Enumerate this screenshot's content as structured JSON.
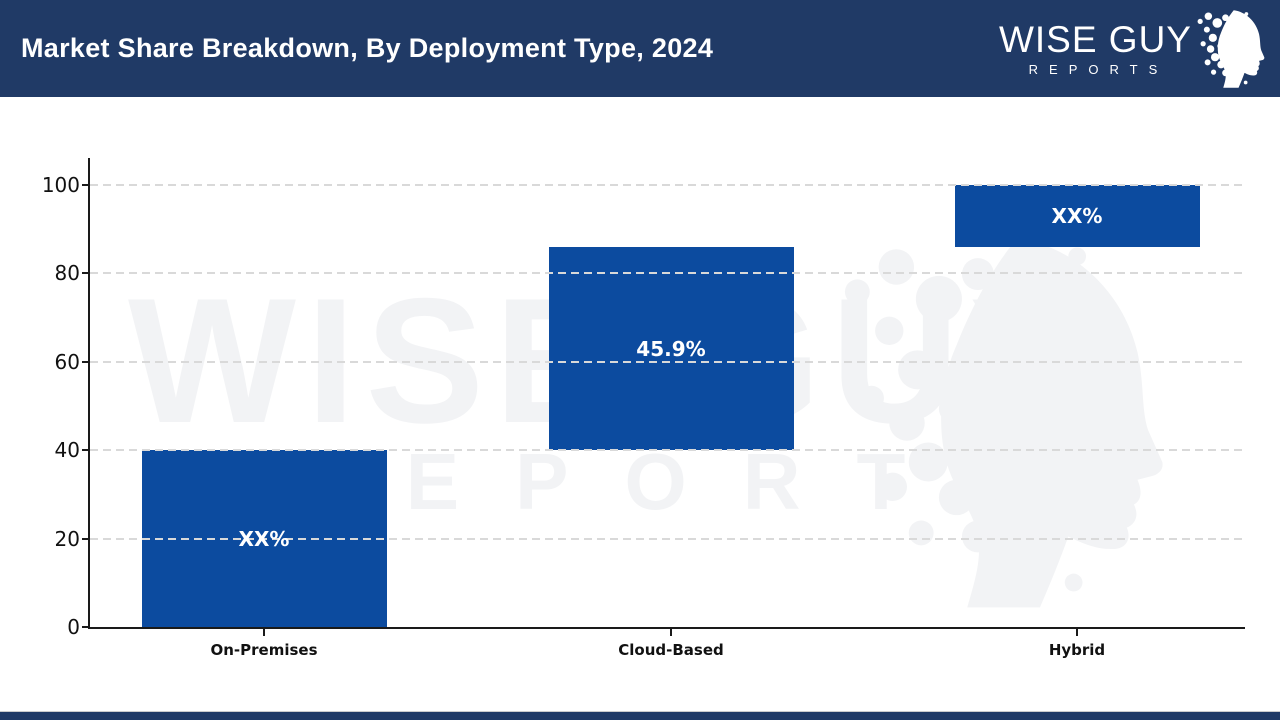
{
  "header": {
    "title": "Market Share Breakdown, By Deployment Type, 2024",
    "bg_color": "#203a66",
    "logo": {
      "line1": "WISE GUY",
      "line2": "REPORTS"
    }
  },
  "watermark": {
    "line1": "WISE GUY",
    "line2": "REPORTS"
  },
  "footer": {
    "bg_color": "#203a66"
  },
  "chart_data": {
    "type": "bar",
    "subtype": "stacked-waterfall",
    "title": "Market Share Breakdown, By Deployment Type, 2024",
    "categories": [
      "On-Premises",
      "Cloud-Based",
      "Hybrid"
    ],
    "series": [
      {
        "name": "On-Premises",
        "start": 0,
        "end": 40,
        "value_label": "XX%"
      },
      {
        "name": "Cloud-Based",
        "start": 40,
        "end": 85.9,
        "value_label": "45.9%"
      },
      {
        "name": "Hybrid",
        "start": 85.9,
        "end": 100,
        "value_label": "XX%"
      }
    ],
    "xlabel": "",
    "ylabel": "",
    "yticks": [
      0,
      20,
      40,
      60,
      80,
      100
    ],
    "ylim": [
      0,
      106
    ],
    "grid": "horizontal-dashed",
    "legend": "none",
    "bar_color": "#0c4b9f",
    "grid_color": "#d9d9d9",
    "axis_color": "#1a1a1a"
  }
}
